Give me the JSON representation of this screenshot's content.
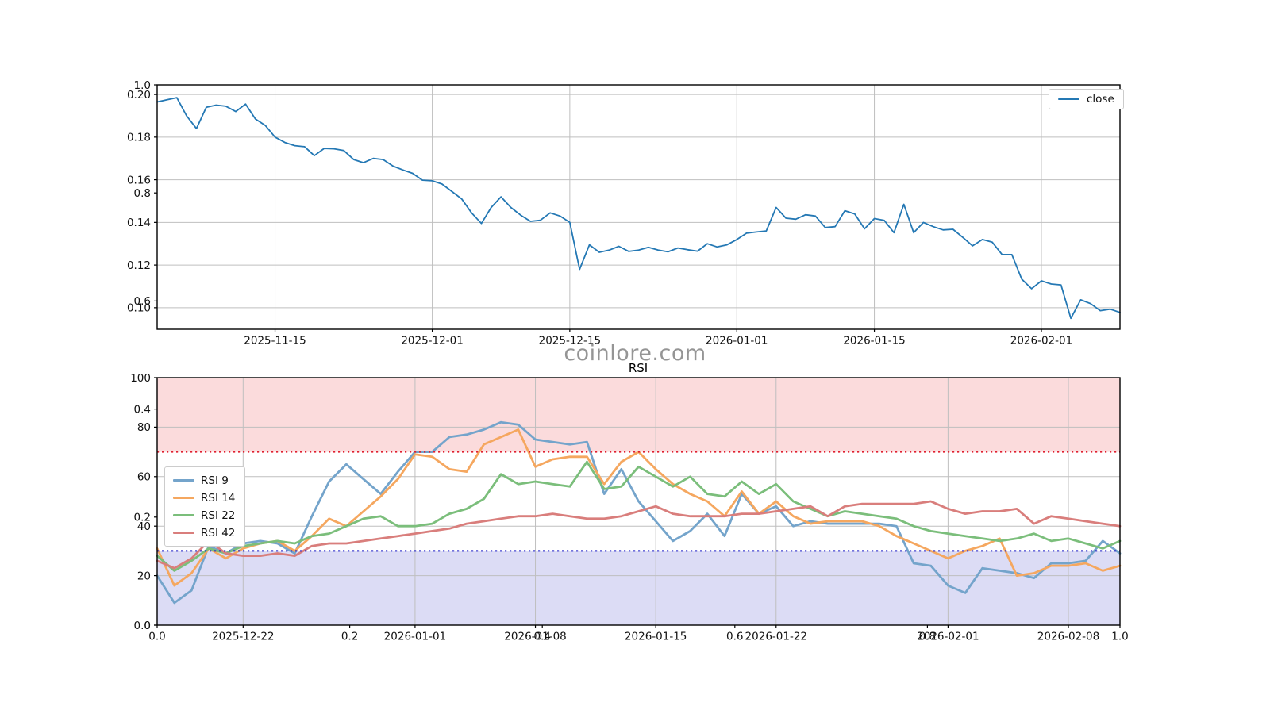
{
  "watermark": "coinlore.com",
  "colors": {
    "close": "#2478b4",
    "rsi9": "#74a4cb",
    "rsi14": "#f5a75f",
    "rsi22": "#7bbe7b",
    "rsi42": "#d97e7c",
    "overbought_band": "#fbdbdc",
    "oversold_band": "#dcdcf5",
    "overbought_line": "#e02030",
    "oversold_line": "#2121c8",
    "grid": "#bfbfbf",
    "spine": "#000000",
    "tick_text": "#111111"
  },
  "legend_close": {
    "label": "close"
  },
  "legend_rsi": {
    "items": [
      {
        "label": "RSI 9",
        "color_key": "rsi9"
      },
      {
        "label": "RSI 14",
        "color_key": "rsi14"
      },
      {
        "label": "RSI 22",
        "color_key": "rsi22"
      },
      {
        "label": "RSI 42",
        "color_key": "rsi42"
      }
    ]
  },
  "hidden_axis": {
    "y_tick_labels": [
      "1.0",
      "0.8",
      "0.6",
      "0.4",
      "0.2",
      "0.0"
    ],
    "x_tick_labels": [
      "0.0",
      "0.2",
      "0.4",
      "0.6",
      "0.8",
      "1.0"
    ]
  },
  "chart_data": [
    {
      "type": "line",
      "name": "price",
      "title": "",
      "ylim": [
        0.0899,
        0.2045
      ],
      "yticks": [
        0.1,
        0.12,
        0.14,
        0.16,
        0.18,
        0.2
      ],
      "ytick_labels": [
        "0.10",
        "0.12",
        "0.14",
        "0.16",
        "0.18",
        "0.20"
      ],
      "x_range": [
        "2025-11-03",
        "2026-02-09"
      ],
      "xticks": [
        "2025-11-15",
        "2025-12-01",
        "2025-12-15",
        "2026-01-01",
        "2026-01-15",
        "2026-02-01"
      ],
      "xtick_labels": [
        "2025-11-15",
        "2025-12-01",
        "2025-12-15",
        "2026-01-01",
        "2026-01-15",
        "2026-02-01"
      ],
      "grid": true,
      "legend_position": "upper right",
      "series": [
        {
          "name": "close",
          "color_key": "close",
          "x_start": "2025-11-03",
          "x_freq": "daily",
          "values": [
            0.1965,
            0.1975,
            0.1985,
            0.19,
            0.184,
            0.194,
            0.195,
            0.1945,
            0.192,
            0.1955,
            0.1885,
            0.1855,
            0.18,
            0.1775,
            0.176,
            0.1755,
            0.1713,
            0.1747,
            0.1745,
            0.1737,
            0.1695,
            0.168,
            0.17,
            0.1695,
            0.1664,
            0.1646,
            0.163,
            0.1598,
            0.1595,
            0.158,
            0.1545,
            0.151,
            0.1445,
            0.1395,
            0.147,
            0.152,
            0.147,
            0.1434,
            0.1405,
            0.141,
            0.1445,
            0.143,
            0.14,
            0.118,
            0.1295,
            0.126,
            0.127,
            0.1288,
            0.1264,
            0.127,
            0.1283,
            0.127,
            0.1262,
            0.128,
            0.1272,
            0.1265,
            0.13,
            0.1285,
            0.1295,
            0.132,
            0.135,
            0.1355,
            0.136,
            0.147,
            0.142,
            0.1415,
            0.1436,
            0.143,
            0.1376,
            0.138,
            0.1455,
            0.144,
            0.137,
            0.1418,
            0.141,
            0.1352,
            0.1485,
            0.1352,
            0.14,
            0.138,
            0.1365,
            0.1368,
            0.133,
            0.129,
            0.132,
            0.1307,
            0.1249,
            0.1249,
            0.1134,
            0.1089,
            0.1126,
            0.1111,
            0.1107,
            0.095,
            0.1037,
            0.1019,
            0.0986,
            0.0993,
            0.0978
          ]
        }
      ]
    },
    {
      "type": "line",
      "name": "rsi",
      "title": "RSI",
      "ylim": [
        0,
        100
      ],
      "yticks": [
        0,
        20,
        40,
        60,
        80,
        100
      ],
      "ytick_labels": [
        "0",
        "20",
        "40",
        "60",
        "80",
        "100"
      ],
      "x_range": [
        "2025-12-17",
        "2026-02-11"
      ],
      "xticks": [
        "2025-12-22",
        "2026-01-01",
        "2026-01-08",
        "2026-01-15",
        "2026-01-22",
        "2026-02-01",
        "2026-02-08"
      ],
      "xtick_labels": [
        "2025-12-22",
        "2026-01-01",
        "2026-01-08",
        "2026-01-15",
        "2026-01-22",
        "2026-02-01",
        "2026-02-08"
      ],
      "grid": true,
      "legend_position": "center left",
      "bands": [
        {
          "from": 70,
          "to": 100,
          "color_key": "overbought_band"
        },
        {
          "from": 0,
          "to": 30,
          "color_key": "oversold_band"
        }
      ],
      "hlines": [
        {
          "v": 70,
          "color_key": "overbought_line",
          "style": "dotted"
        },
        {
          "v": 30,
          "color_key": "oversold_line",
          "style": "dotted"
        }
      ],
      "series": [
        {
          "name": "RSI 9",
          "color_key": "rsi9",
          "x_start": "2025-12-17",
          "x_freq": "daily",
          "values": [
            20,
            9,
            14,
            32,
            29,
            33,
            34,
            33,
            29,
            44,
            58,
            65,
            59,
            53,
            62,
            70,
            70,
            76,
            77,
            79,
            82,
            81,
            75,
            74,
            73,
            74,
            53,
            63,
            50,
            42,
            34,
            38,
            45,
            36,
            53,
            45,
            48,
            40,
            42,
            41,
            41,
            41,
            41,
            40,
            25,
            24,
            16,
            13,
            23,
            22,
            21,
            19,
            25,
            25,
            26,
            34,
            29
          ]
        },
        {
          "name": "RSI 14",
          "color_key": "rsi14",
          "x_start": "2025-12-17",
          "x_freq": "daily",
          "values": [
            31,
            16,
            21,
            31,
            27,
            31,
            33,
            34,
            30,
            36,
            43,
            40,
            46,
            52,
            59,
            69,
            68,
            63,
            62,
            73,
            76,
            79,
            64,
            67,
            68,
            68,
            57,
            66,
            70,
            63,
            57,
            53,
            50,
            44,
            54,
            45,
            50,
            44,
            41,
            42,
            42,
            42,
            40,
            36,
            33,
            30,
            27,
            30,
            32,
            35,
            20,
            21,
            24,
            24,
            25,
            22,
            24
          ]
        },
        {
          "name": "RSI 22",
          "color_key": "rsi22",
          "x_start": "2025-12-17",
          "x_freq": "daily",
          "values": [
            28,
            22,
            26,
            31,
            29,
            32,
            33,
            34,
            33,
            36,
            37,
            40,
            43,
            44,
            40,
            40,
            41,
            45,
            47,
            51,
            61,
            57,
            58,
            57,
            56,
            66,
            55,
            56,
            64,
            60,
            56,
            60,
            53,
            52,
            58,
            53,
            57,
            50,
            47,
            44,
            46,
            45,
            44,
            43,
            40,
            38,
            37,
            36,
            35,
            34,
            35,
            37,
            34,
            35,
            33,
            31,
            34
          ]
        },
        {
          "name": "RSI 42",
          "color_key": "rsi42",
          "x_start": "2025-12-17",
          "x_freq": "daily",
          "values": [
            26,
            23,
            27,
            34,
            29,
            28,
            28,
            29,
            28,
            32,
            33,
            33,
            34,
            35,
            36,
            37,
            38,
            39,
            41,
            42,
            43,
            44,
            44,
            45,
            44,
            43,
            43,
            44,
            46,
            48,
            45,
            44,
            44,
            44,
            45,
            45,
            46,
            47,
            48,
            44,
            48,
            49,
            49,
            49,
            49,
            50,
            47,
            45,
            46,
            46,
            47,
            41,
            44,
            43,
            42,
            41,
            40
          ]
        }
      ]
    }
  ]
}
